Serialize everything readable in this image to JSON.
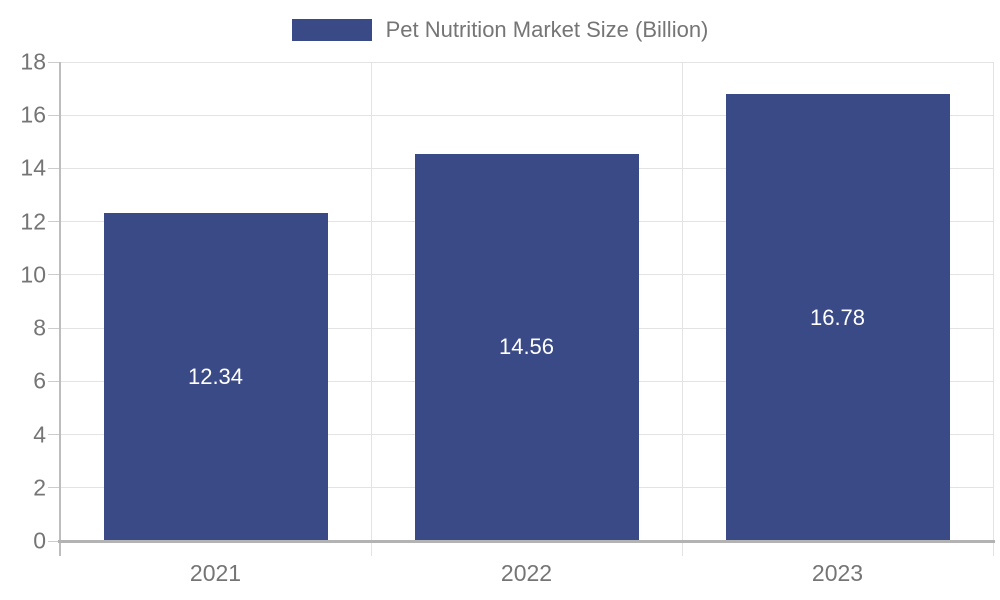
{
  "legend": {
    "label": "Pet Nutrition Market Size (Billion)",
    "swatch_color": "#3a4a86"
  },
  "chart_data": {
    "type": "bar",
    "title": "Pet Nutrition Market Size (Billion)",
    "categories": [
      "2021",
      "2022",
      "2023"
    ],
    "values": [
      12.34,
      14.56,
      16.78
    ],
    "value_labels": [
      "12.34",
      "14.56",
      "16.78"
    ],
    "xlabel": "",
    "ylabel": "",
    "ylim": [
      0,
      18
    ],
    "yticks": [
      0,
      2,
      4,
      6,
      8,
      10,
      12,
      14,
      16,
      18
    ],
    "grid": true,
    "legend_position": "top-center",
    "bar_color": "#3a4a86",
    "bar_label_color": "#ffffff",
    "axis_text_color": "#757575",
    "gridline_color": "#e3e3e3",
    "axis_line_color": "#b3b3b3"
  }
}
